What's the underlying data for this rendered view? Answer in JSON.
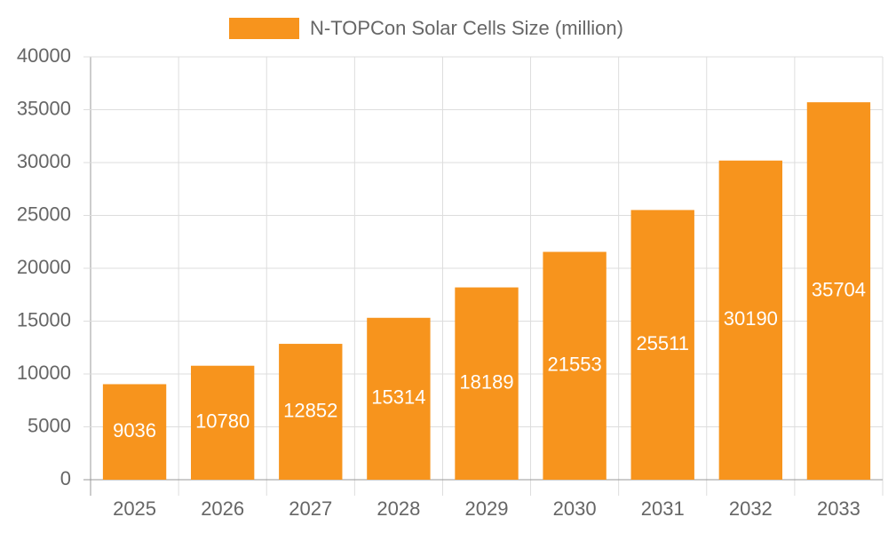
{
  "chart_data": {
    "type": "bar",
    "legend": "N-TOPCon Solar Cells Size (million)",
    "categories": [
      "2025",
      "2026",
      "2027",
      "2028",
      "2029",
      "2030",
      "2031",
      "2032",
      "2033"
    ],
    "values": [
      9036,
      10780,
      12852,
      15314,
      18189,
      21553,
      25511,
      30190,
      35704
    ],
    "color": "#f7941d",
    "ylim": [
      0,
      40000
    ],
    "yticks": [
      0,
      5000,
      10000,
      15000,
      20000,
      25000,
      30000,
      35000,
      40000
    ],
    "grid": true,
    "data_labels": true,
    "legend_position": "top"
  }
}
